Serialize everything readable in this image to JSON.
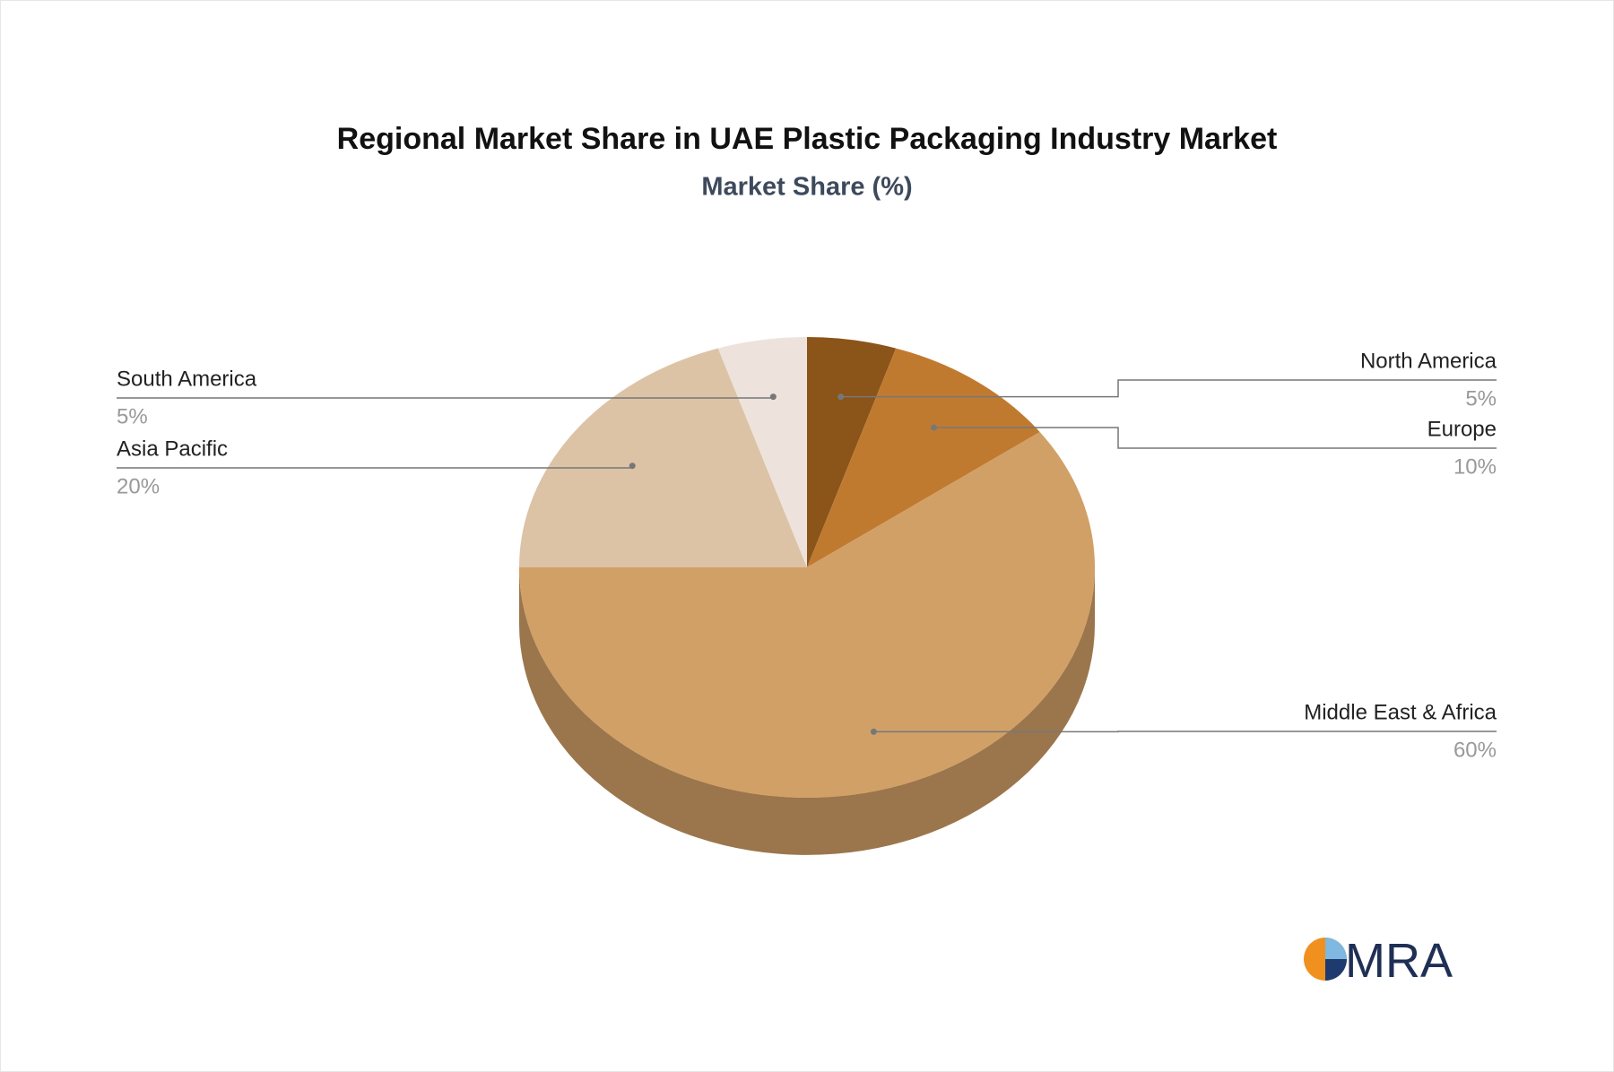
{
  "chart_data": {
    "type": "pie3d",
    "title": "Regional Market Share in UAE Plastic Packaging Industry Market",
    "subtitle": "Market Share (%)",
    "categories": [
      "North America",
      "Europe",
      "Middle East & Africa",
      "Asia Pacific",
      "South America"
    ],
    "values": [
      5,
      10,
      60,
      20,
      5
    ],
    "value_labels": [
      "5%",
      "10%",
      "60%",
      "20%",
      "5%"
    ],
    "colors": [
      "#8b5419",
      "#c07a30",
      "#d1a067",
      "#dcc3a5",
      "#ede3dc"
    ]
  },
  "logo": "MRA"
}
